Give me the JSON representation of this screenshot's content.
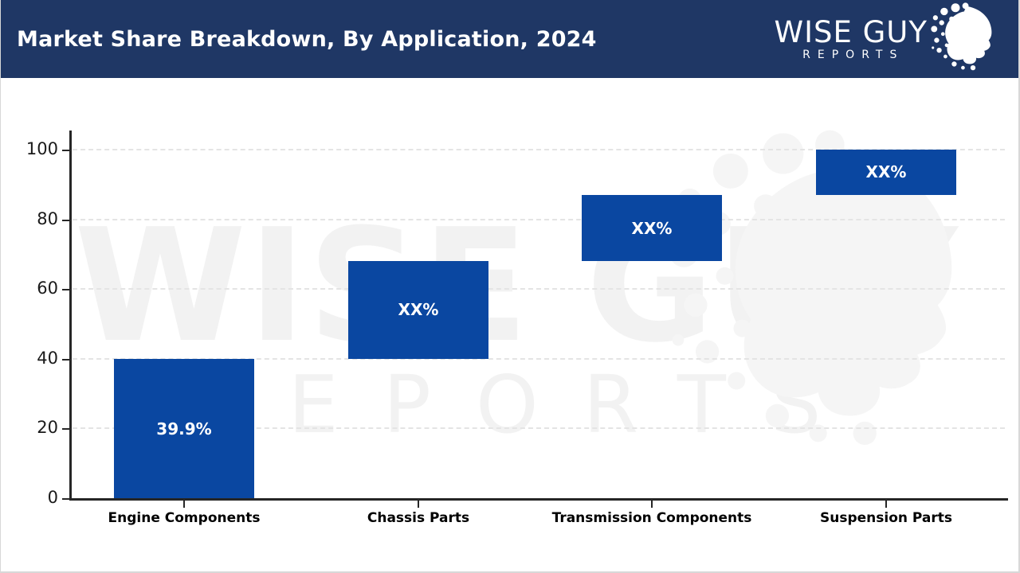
{
  "header": {
    "title": "Market Share Breakdown, By Application, 2024",
    "logo": {
      "line1": "WISE GUY",
      "line2": "REPORTS"
    },
    "colors": {
      "background": "#1f3765",
      "text": "#ffffff"
    }
  },
  "watermark": {
    "line1": "WISE GUY",
    "line2": "REPORTS"
  },
  "chart_data": {
    "type": "bar",
    "subtype": "floating-segment-waterfall",
    "title": "Market Share Breakdown, By Application, 2024",
    "categories": [
      "Engine Components",
      "Chassis Parts",
      "Transmission Components",
      "Suspension Parts"
    ],
    "bars": [
      {
        "category": "Engine Components",
        "start": 0,
        "end": 39.9,
        "label": "39.9%"
      },
      {
        "category": "Chassis Parts",
        "start": 40,
        "end": 68,
        "label": "XX%"
      },
      {
        "category": "Transmission Components",
        "start": 68,
        "end": 87,
        "label": "XX%"
      },
      {
        "category": "Suspension Parts",
        "start": 87,
        "end": 100,
        "label": "XX%"
      }
    ],
    "xlabel": "",
    "ylabel": "",
    "ylim": [
      0,
      100
    ],
    "yticks": [
      0,
      20,
      40,
      60,
      80,
      100
    ],
    "grid": "horizontal-dashed",
    "legend": "none",
    "colors": {
      "bar": "#0a47a1",
      "bar_label": "#ffffff",
      "grid": "#e4e4e4",
      "axis": "#262626",
      "tick_label": "#1a1a1a",
      "watermark": "#f2f2f2"
    }
  }
}
